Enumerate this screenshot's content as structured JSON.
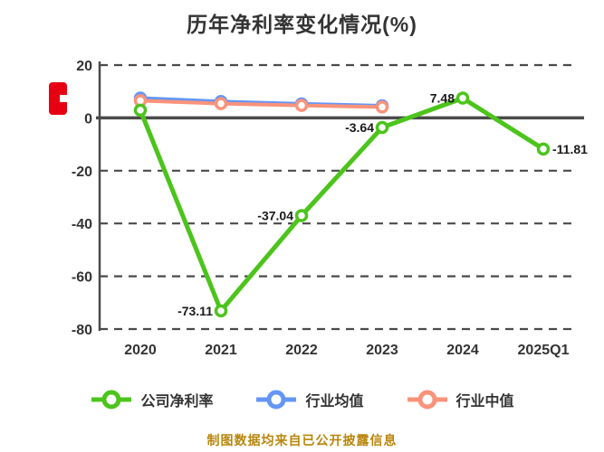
{
  "title": "历年净利率变化情况(%)",
  "watermark": {
    "name": "red-badge",
    "color": "#e60012"
  },
  "legend": {
    "items": [
      {
        "label": "公司净利率",
        "color": "#4cc41c"
      },
      {
        "label": "行业均值",
        "color": "#6496f8"
      },
      {
        "label": "行业中值",
        "color": "#f9937a"
      }
    ]
  },
  "footer": {
    "text": "制图数据均来自已公开披露信息",
    "color": "#b8860b"
  },
  "chart_data": {
    "type": "line",
    "title": "历年净利率变化情况(%)",
    "categories": [
      "2020",
      "2021",
      "2022",
      "2023",
      "2024",
      "2025Q1"
    ],
    "series": [
      {
        "name": "公司净利率",
        "color": "#4cc41c",
        "line_width": 5,
        "values": [
          2.91,
          -73.11,
          -37.04,
          -3.64,
          7.48,
          -11.81
        ],
        "point_labels": [
          "",
          "-73.11",
          "-37.04",
          "-3.64",
          "7.48",
          "-11.81"
        ],
        "label_sides": [
          "",
          "left",
          "left",
          "left",
          "left",
          "right"
        ]
      },
      {
        "name": "行业均值",
        "color": "#6496f8",
        "line_width": 4,
        "values": [
          7.5,
          6.2,
          5.3,
          4.6,
          null,
          null
        ],
        "point_labels": [
          "",
          "",
          "",
          "",
          "",
          ""
        ],
        "label_sides": [
          "",
          "",
          "",
          "",
          "",
          ""
        ]
      },
      {
        "name": "行业中值",
        "color": "#f9937a",
        "line_width": 4,
        "values": [
          6.5,
          5.4,
          4.7,
          4.1,
          null,
          null
        ],
        "point_labels": [
          "",
          "",
          "",
          "",
          "",
          ""
        ],
        "label_sides": [
          "",
          "",
          "",
          "",
          "",
          ""
        ]
      }
    ],
    "ylim": [
      -80,
      20
    ],
    "yticks": [
      20,
      0,
      -20,
      -40,
      -60,
      -80
    ],
    "grid": "horizontal dashed, solid zero line",
    "grid_color": "#4a4a4a",
    "axis_text_color": "#333333",
    "legend_position": "bottom",
    "marker": "white-filled ring"
  }
}
